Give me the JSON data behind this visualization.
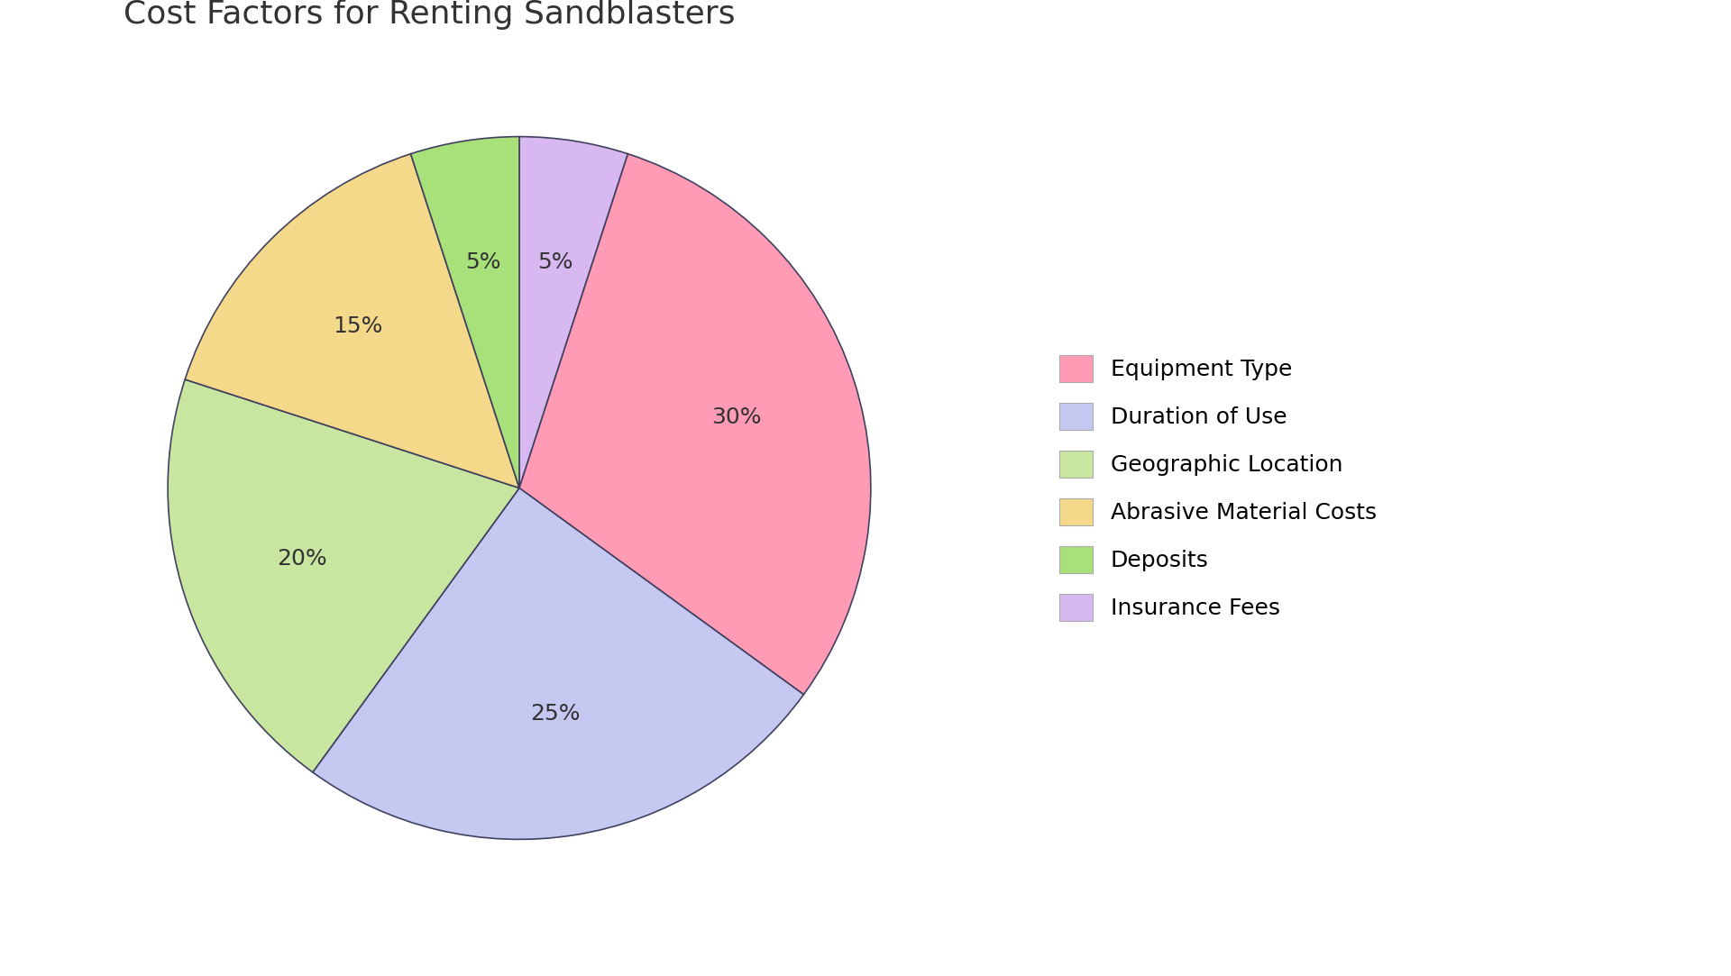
{
  "title": "Cost Factors for Renting Sandblasters",
  "labels": [
    "Equipment Type",
    "Duration of Use",
    "Geographic Location",
    "Abrasive Material Costs",
    "Deposits",
    "Insurance Fees"
  ],
  "values": [
    30,
    25,
    20,
    15,
    5,
    5
  ],
  "colors": [
    "#FF9BB5",
    "#C5C8F0",
    "#C8E6A0",
    "#F5D98A",
    "#A8E07A",
    "#D8B8F0"
  ],
  "wedge_order": [
    5,
    0,
    1,
    2,
    3,
    4
  ],
  "edge_color": "#404060",
  "edge_width": 1.2,
  "background_color": "#FFFFFF",
  "title_fontsize": 26,
  "label_fontsize": 18,
  "legend_fontsize": 18,
  "startangle": 90
}
